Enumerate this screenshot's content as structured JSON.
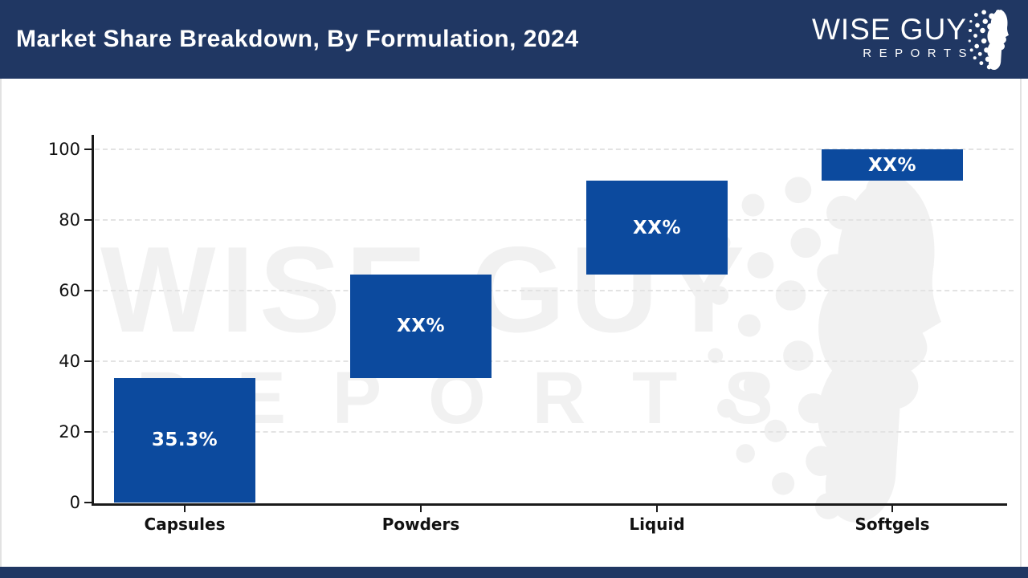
{
  "header": {
    "title": "Market Share Breakdown, By Formulation, 2024"
  },
  "brand": {
    "name_line1": "WISE GUY",
    "name_line2": "REPORTS"
  },
  "watermark": {
    "line1": "WISE GUY",
    "line2": "REPORTS"
  },
  "chart_data": {
    "type": "bar",
    "subtype": "floating-segment-waterfall",
    "title": "Market Share Breakdown, By Formulation, 2024",
    "categories": [
      "Capsules",
      "Powders",
      "Liquid",
      "Softgels"
    ],
    "segments": [
      {
        "category": "Capsules",
        "start": 0,
        "end": 35.3,
        "label": "35.3%"
      },
      {
        "category": "Powders",
        "start": 35.3,
        "end": 64.5,
        "label": "XX%"
      },
      {
        "category": "Liquid",
        "start": 64.5,
        "end": 91.1,
        "label": "XX%"
      },
      {
        "category": "Softgels",
        "start": 91.1,
        "end": 100,
        "label": "XX%"
      }
    ],
    "xlabel": "",
    "ylabel": "",
    "ylim": [
      0,
      104
    ],
    "yticks": [
      0,
      20,
      40,
      60,
      80,
      100
    ],
    "legend": "none",
    "grid": "horizontal-dashed",
    "bar_color": "#0c4a9e",
    "bar_label_color": "#ffffff"
  },
  "colors": {
    "header_bg": "#203763",
    "footer_bg": "#203763",
    "bar_blue": "#0c4a9e",
    "axis": "#1a1a1a",
    "grid": "#e3e3e3",
    "watermark": "#f1f1f1",
    "frame": "#e2e2e2",
    "title_text": "#ffffff"
  }
}
